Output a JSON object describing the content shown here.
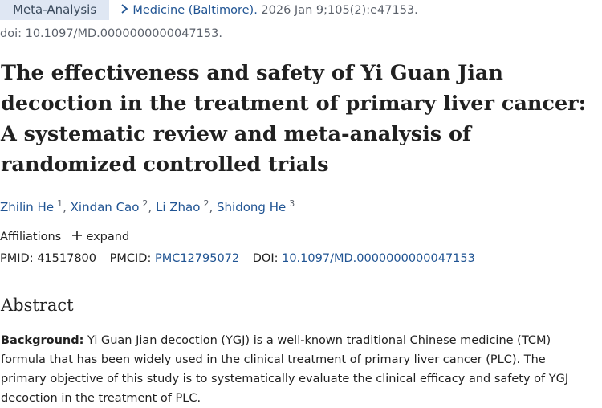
{
  "header": {
    "article_type": "Meta-Analysis",
    "journal": "Medicine (Baltimore).",
    "citation": "2026 Jan 9;105(2):e47153.",
    "doi_line": "doi: 10.1097/MD.0000000000047153."
  },
  "title": "The effectiveness and safety of Yi Guan Jian decoction in the treatment of primary liver cancer: A systematic review and meta-analysis of randomized controlled trials",
  "authors": {
    "separator": ",",
    "list": [
      {
        "name": "Zhilin He",
        "sup": "1"
      },
      {
        "name": "Xindan Cao",
        "sup": "2"
      },
      {
        "name": "Li Zhao",
        "sup": "2"
      },
      {
        "name": "Shidong He",
        "sup": "3"
      }
    ]
  },
  "affiliations": {
    "label": "Affiliations",
    "expand": "expand"
  },
  "ids": {
    "pmid_label": "PMID:",
    "pmid": "41517800",
    "pmcid_label": "PMCID:",
    "pmcid": "PMC12795072",
    "doi_label": "DOI:",
    "doi": "10.1097/MD.0000000000047153"
  },
  "abstract": {
    "heading": "Abstract",
    "background_label": "Background:",
    "background_text": "Yi Guan Jian decoction (YGJ) is a well-known traditional Chinese medicine (TCM) formula that has been widely used in the clinical treatment of primary liver cancer (PLC). The primary objective of this study is to systematically evaluate the clinical efficacy and safety of YGJ decoction in the treatment of PLC."
  }
}
